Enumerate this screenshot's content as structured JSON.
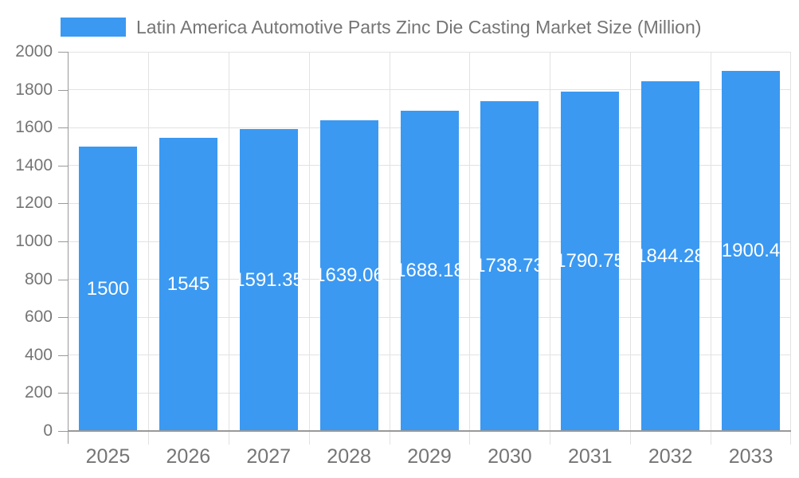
{
  "legend": {
    "label": "Latin America Automotive Parts Zinc Die Casting Market Size (Million)",
    "swatch_color": "#3B99F1"
  },
  "chart_data": {
    "type": "bar",
    "title": "Latin America Automotive Parts Zinc Die Casting Market Size (Million)",
    "categories": [
      "2025",
      "2026",
      "2027",
      "2028",
      "2029",
      "2030",
      "2031",
      "2032",
      "2033"
    ],
    "values": [
      1500,
      1545,
      1591.35,
      1639.06,
      1688.18,
      1738.73,
      1790.75,
      1844.28,
      1900.4
    ],
    "value_labels": [
      "1500",
      "1545",
      "1591.35",
      "1639.06",
      "1688.18",
      "1738.73",
      "1790.75",
      "1844.28",
      "1900.4"
    ],
    "xlabel": "",
    "ylabel": "",
    "ylim": [
      0,
      2000
    ],
    "yticks": [
      0,
      200,
      400,
      600,
      800,
      1000,
      1200,
      1400,
      1600,
      1800,
      2000
    ],
    "grid": true,
    "legend_position": "top-left",
    "bar_color": "#3B99F1",
    "value_label_color": "#FFFFFF"
  },
  "colors": {
    "bar": "#3B99F1",
    "grid": "#E2E2E2",
    "axis": "#999999",
    "text": "#757575",
    "bar_label": "#FFFFFF",
    "background": "#FFFFFF"
  }
}
